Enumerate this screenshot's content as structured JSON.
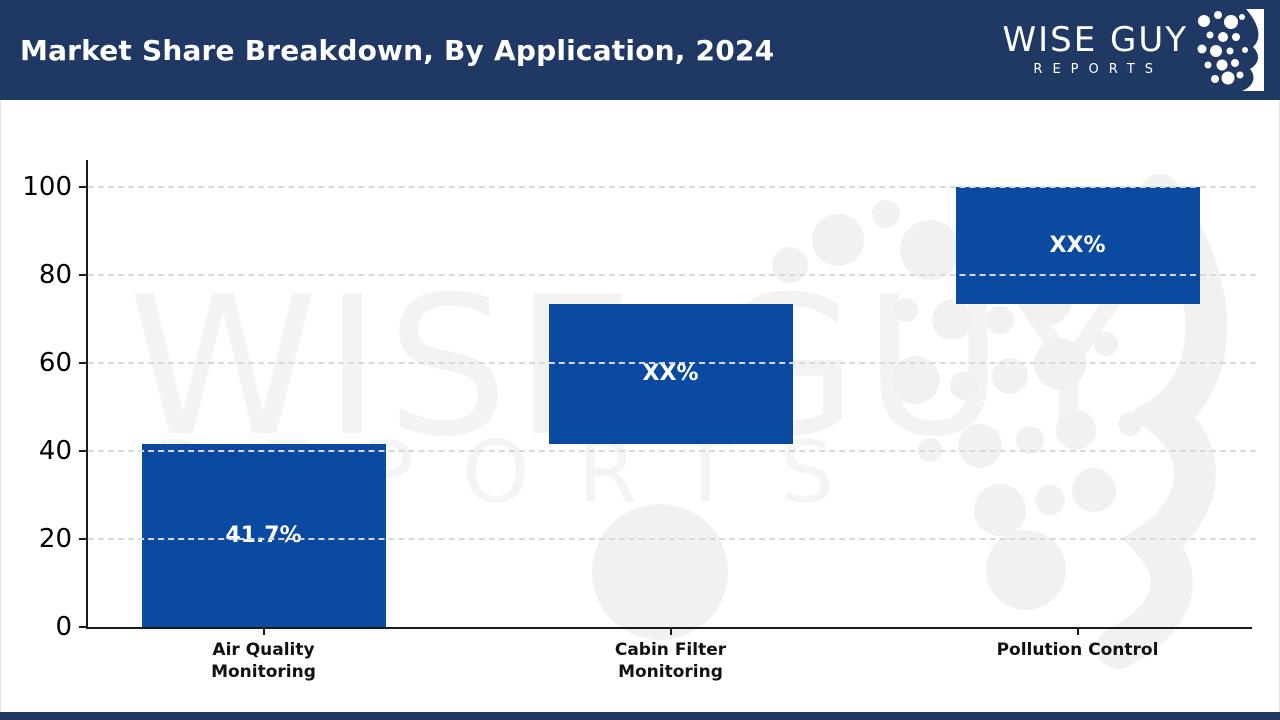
{
  "header": {
    "title": "Market Share Breakdown, By Application, 2024",
    "brand_line1": "WISE GUY",
    "brand_line2": "REPORTS",
    "bg_color": "#1F3864"
  },
  "watermark": {
    "line1": "WISE GUY",
    "line2": "REPORTS"
  },
  "chart_data": {
    "type": "bar",
    "subtype": "waterfall-stacked-breakdown",
    "title": "Market Share Breakdown, By Application, 2024",
    "categories": [
      "Air Quality Monitoring",
      "Cabin Filter Monitoring",
      "Pollution Control"
    ],
    "category_label_lines": [
      [
        "Air Quality",
        "Monitoring"
      ],
      [
        "Cabin Filter",
        "Monitoring"
      ],
      [
        "Pollution Control"
      ]
    ],
    "segments": [
      {
        "category": "Air Quality Monitoring",
        "start": 0,
        "end": 41.7,
        "label": "41.7%"
      },
      {
        "category": "Cabin Filter Monitoring",
        "start": 41.7,
        "end": 73.5,
        "label": "XX%"
      },
      {
        "category": "Pollution Control",
        "start": 73.5,
        "end": 100,
        "label": "XX%"
      }
    ],
    "ylim": [
      0,
      100
    ],
    "yticks": [
      0,
      20,
      40,
      60,
      80,
      100
    ],
    "grid": "horizontal-dashed",
    "legend": "none",
    "bar_color": "#0B4AA1",
    "bar_label_color": "#ffffff",
    "axis_color": "#1a1a1a",
    "grid_color": "#d9d9d9"
  }
}
